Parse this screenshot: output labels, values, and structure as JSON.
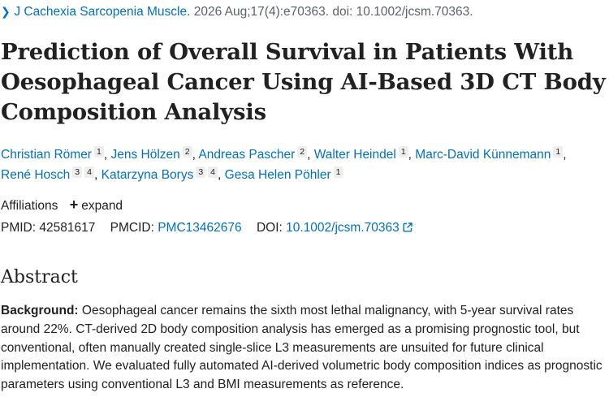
{
  "citation": {
    "journal": "J Cachexia Sarcopenia Muscle.",
    "details": " 2026 Aug;17(4):e70363. doi: 10.1002/jcsm.70363."
  },
  "article": {
    "title": "Prediction of Overall Survival in Patients With Oesophageal Cancer Using AI-Based 3D CT Body Composition Analysis"
  },
  "authors": [
    {
      "name": "Christian Römer",
      "aff": "1"
    },
    {
      "name": "Jens Hölzen",
      "aff": "2"
    },
    {
      "name": "Andreas Pascher",
      "aff": "2"
    },
    {
      "name": "Walter Heindel",
      "aff": "1"
    },
    {
      "name": "Marc-David Künnemann",
      "aff": "1"
    },
    {
      "name": "René Hosch",
      "aff": "3",
      "aff2": "4"
    },
    {
      "name": "Katarzyna Borys",
      "aff": "3",
      "aff2": "4"
    },
    {
      "name": "Gesa Helen Pöhler",
      "aff": "1"
    }
  ],
  "affiliations": {
    "label": "Affiliations",
    "expand_label": "expand"
  },
  "identifiers": {
    "pmid_label": "PMID:",
    "pmid": "42581617",
    "pmcid_label": "PMCID:",
    "pmcid": "PMC13462676",
    "doi_label": "DOI:",
    "doi": "10.1002/jcsm.70363"
  },
  "abstract": {
    "heading": "Abstract",
    "background_label": "Background:",
    "background_text": " Oesophageal cancer remains the sixth most lethal malignancy, with 5-year survival rates around 22%. CT-derived 2D body composition analysis has emerged as a promising prognostic tool, but conventional, often manually created single-slice L3 measurements are unsuited for future clinical implementation. We evaluated fully automated AI-derived volumetric body composition indices as prognostic parameters using conventional L3 and BMI measurements as reference."
  },
  "icons": {
    "citation_chevron": "chevron-right-icon",
    "expand": "plus-icon",
    "doi_link": "external-link-icon"
  },
  "colors": {
    "link": "#0071bc",
    "text": "#212121"
  }
}
